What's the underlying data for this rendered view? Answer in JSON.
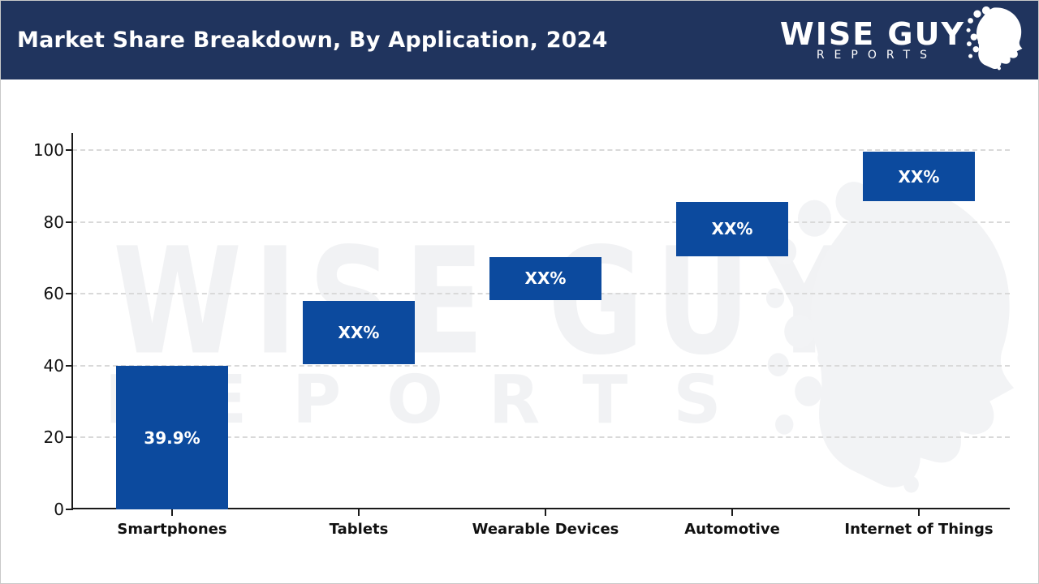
{
  "header": {
    "title": "Market Share Breakdown, By Application, 2024",
    "bg_color": "#20345e",
    "text_color": "#ffffff",
    "logo": {
      "wordmark": "WISE GUY",
      "subtitle": "REPORTS"
    }
  },
  "watermark": {
    "wordmark": "WISE GUY",
    "reports": "REPORTS"
  },
  "chart_data": {
    "type": "bar",
    "subtype": "waterfall",
    "title": "Market Share Breakdown, By Application, 2024",
    "xlabel": "",
    "ylabel": "",
    "ylim": [
      0,
      105
    ],
    "yticks": [
      0,
      20,
      40,
      60,
      80,
      100
    ],
    "grid": "horizontal-dashed",
    "legend": "none",
    "bar_color": "#0c4a9e",
    "bar_label_color": "#ffffff",
    "categories": [
      "Smartphones",
      "Tablets",
      "Wearable Devices",
      "Automotive",
      "Internet of Things"
    ],
    "bars": [
      {
        "category": "Smartphones",
        "base": 0,
        "top": 39.9,
        "label": "39.9%"
      },
      {
        "category": "Tablets",
        "base": 40.4,
        "top": 58.1,
        "label": "XX%"
      },
      {
        "category": "Wearable Devices",
        "base": 58.3,
        "top": 70.3,
        "label": "XX%"
      },
      {
        "category": "Automotive",
        "base": 70.5,
        "top": 85.6,
        "label": "XX%"
      },
      {
        "category": "Internet of Things",
        "base": 85.7,
        "top": 99.6,
        "label": "XX%"
      }
    ]
  }
}
